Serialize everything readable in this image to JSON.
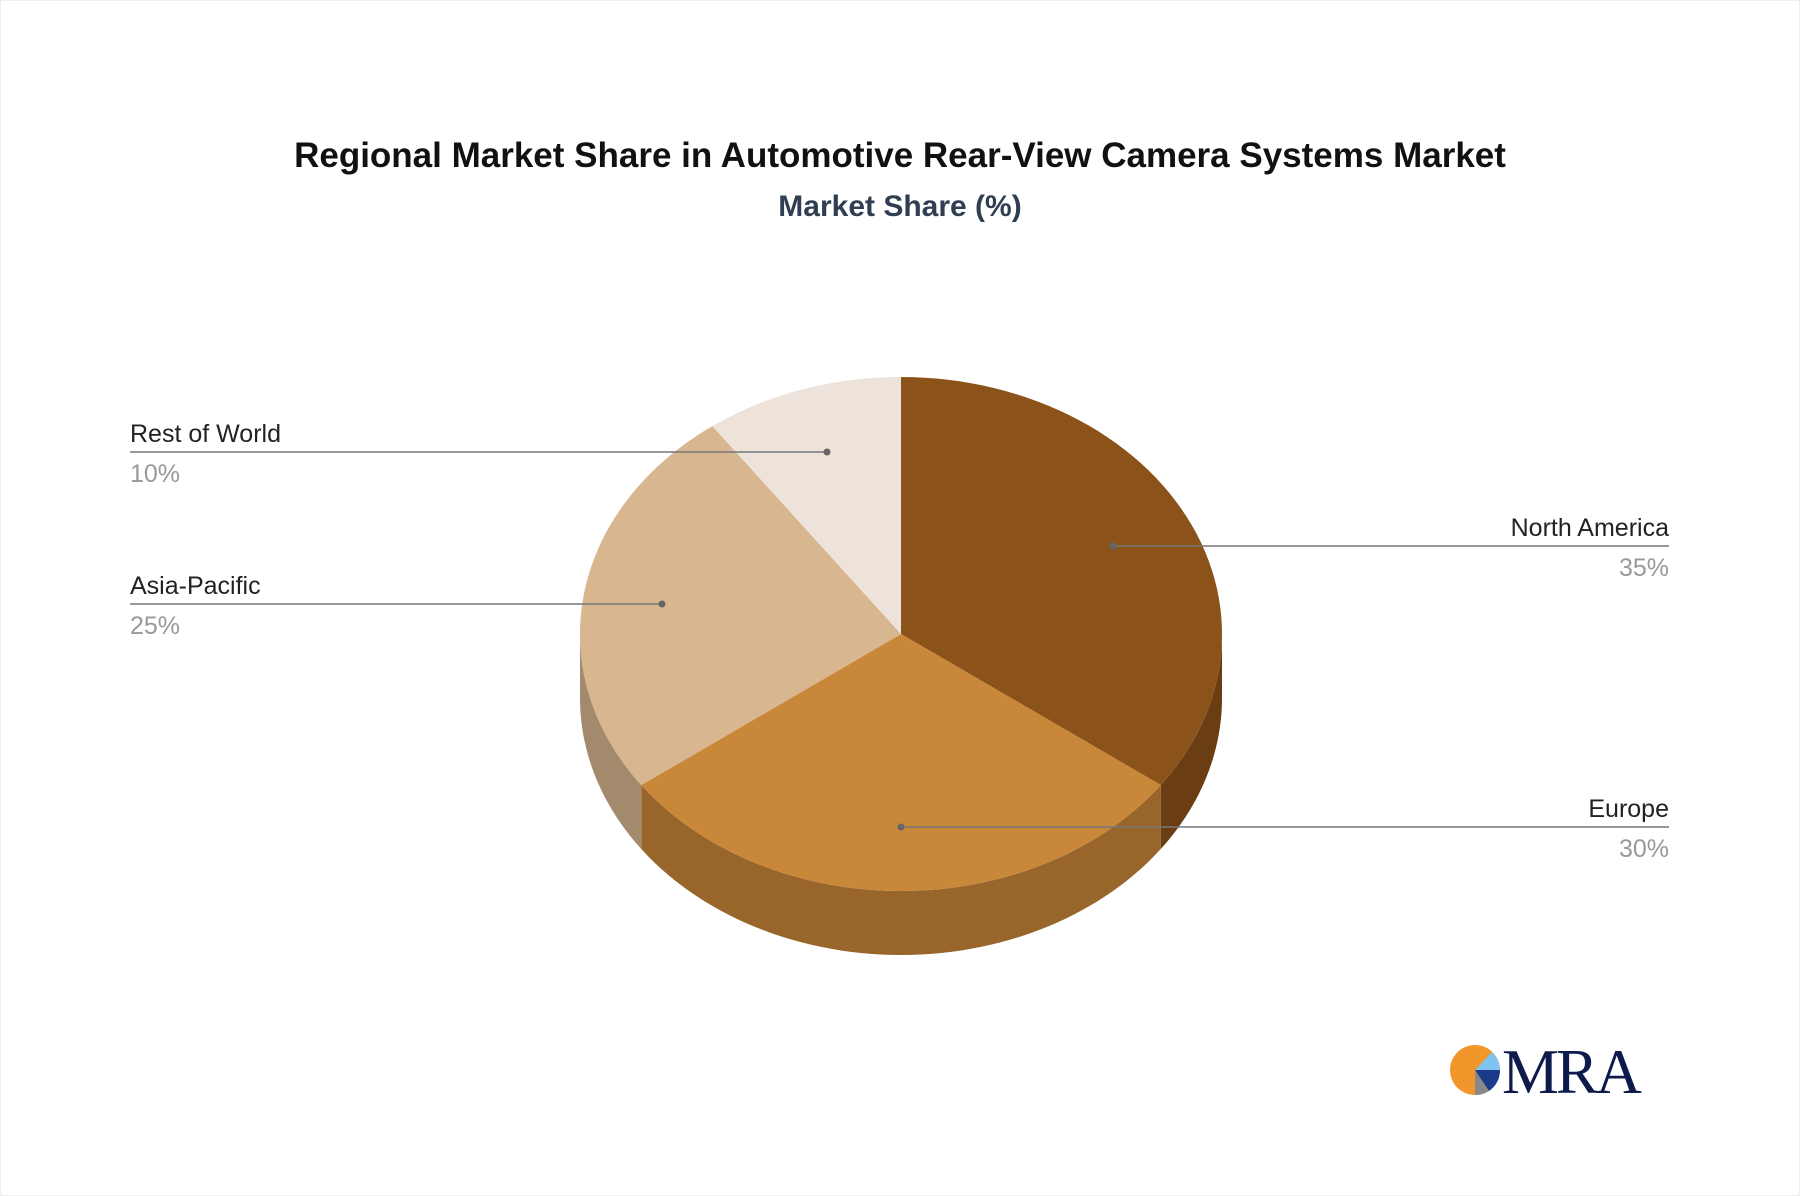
{
  "chart_data": {
    "type": "pie",
    "title": "Regional Market Share in Automotive Rear-View Camera Systems Market",
    "subtitle": "Market Share (%)",
    "three_d": true,
    "slices": [
      {
        "label": "North America",
        "value": 35,
        "value_label": "35%",
        "color": "#8B5319",
        "side_color": "#6A3E12"
      },
      {
        "label": "Europe",
        "value": 30,
        "value_label": "30%",
        "color": "#C9873A",
        "side_color": "#98652B"
      },
      {
        "label": "Asia-Pacific",
        "value": 25,
        "value_label": "25%",
        "color": "#D8B690",
        "side_color": "#A38A6D"
      },
      {
        "label": "Rest of World",
        "value": 10,
        "value_label": "10%",
        "color": "#EEE3DA",
        "side_color": "#B9AFA6"
      }
    ]
  },
  "logo": {
    "text": "MRA",
    "colors": [
      "#F0962A",
      "#0E1A4A",
      "#7FC4EE",
      "#1C3A8A",
      "#888888"
    ]
  }
}
